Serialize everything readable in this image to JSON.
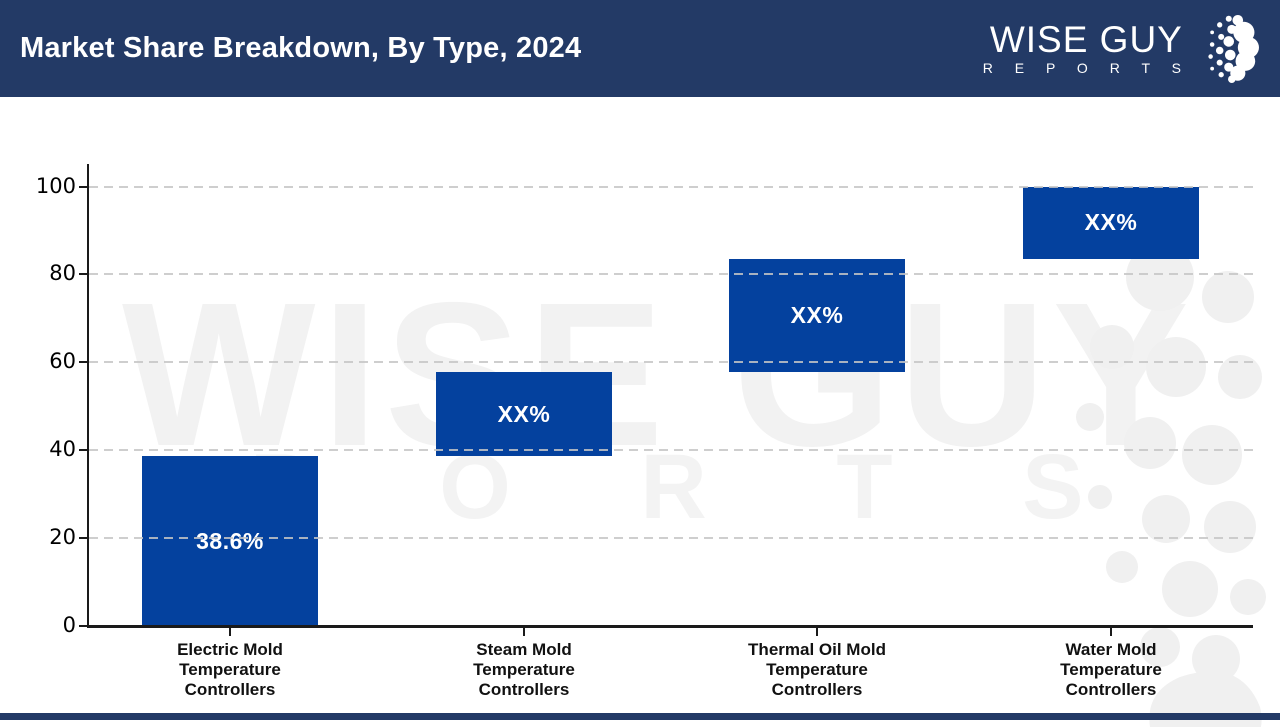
{
  "header": {
    "title": "Market Share Breakdown, By Type, 2024",
    "logo": {
      "name": "WISE GUY",
      "sub": "R E P O R T S"
    }
  },
  "watermark": {
    "big": "WISE GUY",
    "sub": "P O R T S"
  },
  "chart_data": {
    "type": "bar",
    "subtype": "waterfall",
    "title": "Market Share Breakdown, By Type, 2024",
    "ylim": [
      0,
      100
    ],
    "yticks": [
      0,
      20,
      40,
      60,
      80,
      100
    ],
    "grid": "horizontal-dashed",
    "legend": "none",
    "bar_color": "#04419e",
    "value_label_color": "#ffffff",
    "categories": [
      [
        "Electric Mold",
        "Temperature",
        "Controllers"
      ],
      [
        "Steam Mold",
        "Temperature",
        "Controllers"
      ],
      [
        "Thermal Oil Mold",
        "Temperature",
        "Controllers"
      ],
      [
        "Water Mold",
        "Temperature",
        "Controllers"
      ]
    ],
    "segments": [
      {
        "category": "Electric Mold Temperature Controllers",
        "start": 0,
        "end": 38.6,
        "label": "38.6%"
      },
      {
        "category": "Steam Mold Temperature Controllers",
        "start": 38.6,
        "end": 57.8,
        "label": "XX%"
      },
      {
        "category": "Thermal Oil Mold Temperature Controllers",
        "start": 57.8,
        "end": 83.5,
        "label": "XX%"
      },
      {
        "category": "Water Mold Temperature Controllers",
        "start": 83.5,
        "end": 100,
        "label": "XX%"
      }
    ]
  },
  "colors": {
    "header_bg": "#233a66",
    "footer_bg": "#233a66",
    "bar": "#04419e",
    "gridline": "#c6c6c6",
    "axis": "#1a1a1a",
    "watermark": "#f2f2f2"
  }
}
